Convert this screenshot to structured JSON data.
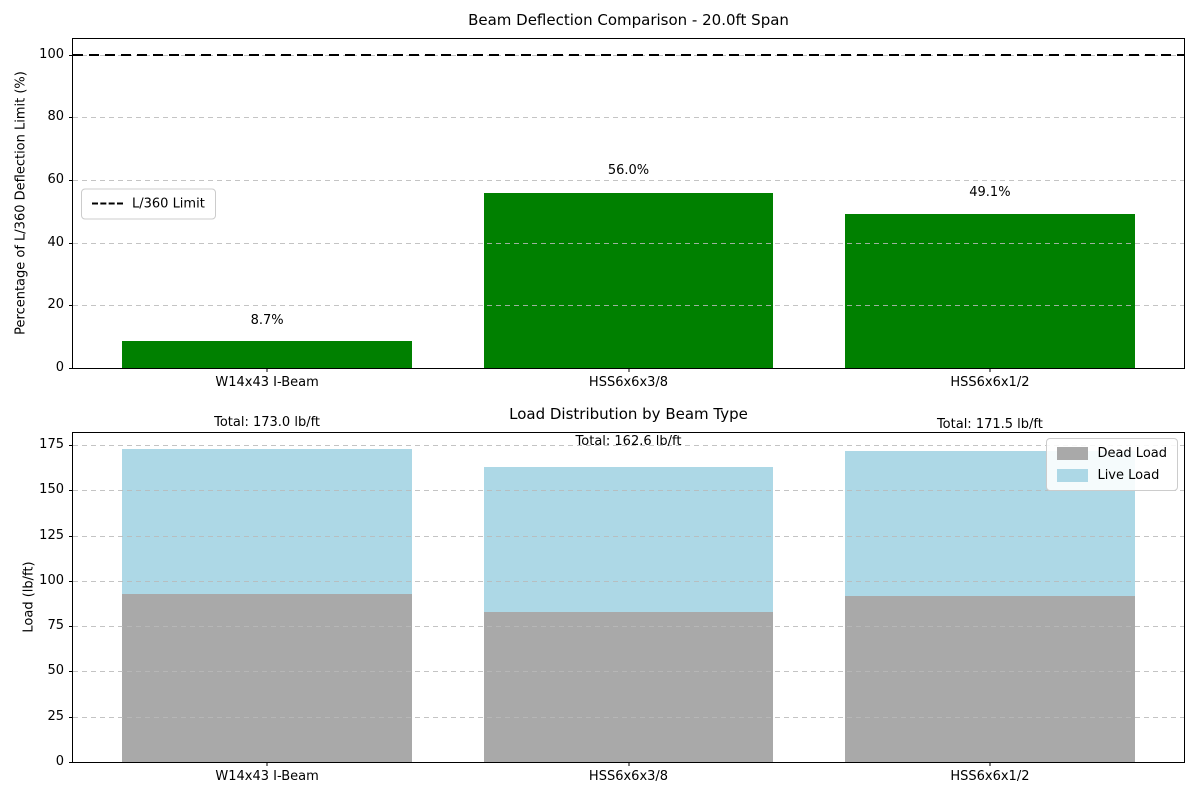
{
  "chart_data": [
    {
      "type": "bar",
      "title": "Beam Deflection Comparison - 20.0ft Span",
      "ylabel": "Percentage of L/360 Deflection Limit (%)",
      "xlabel": "",
      "categories": [
        "W14x43 I-Beam",
        "HSS6x6x3/8",
        "HSS6x6x1/2"
      ],
      "values": [
        8.7,
        56.0,
        49.1
      ],
      "value_labels": [
        "8.7%",
        "56.0%",
        "49.1%"
      ],
      "bar_color": "#008000",
      "ylim": [
        0,
        105
      ],
      "yticks": [
        0,
        20,
        40,
        60,
        80,
        100
      ],
      "grid": "y-dashed",
      "reference_line": {
        "value": 100,
        "color": "#000000",
        "linestyle": "dashed"
      },
      "legend": {
        "position": "center-left",
        "entries": [
          {
            "label": "L/360 Limit",
            "swatch_type": "dashed-line",
            "color": "#000000"
          }
        ]
      }
    },
    {
      "type": "bar",
      "stacked": true,
      "title": "Load Distribution by Beam Type",
      "ylabel": "Load (lb/ft)",
      "xlabel": "",
      "categories": [
        "W14x43 I-Beam",
        "HSS6x6x3/8",
        "HSS6x6x1/2"
      ],
      "series": [
        {
          "name": "Dead Load",
          "color": "#a9a9a9",
          "values": [
            93.0,
            82.6,
            91.5
          ]
        },
        {
          "name": "Live Load",
          "color": "#add8e6",
          "values": [
            80.0,
            80.0,
            80.0
          ]
        }
      ],
      "totals": [
        173.0,
        162.6,
        171.5
      ],
      "total_labels": [
        "Total: 173.0 lb/ft",
        "Total: 162.6 lb/ft",
        "Total: 171.5 lb/ft"
      ],
      "ylim": [
        0,
        181.6
      ],
      "yticks": [
        0,
        25,
        50,
        75,
        100,
        125,
        150,
        175
      ],
      "grid": "y-dashed",
      "legend": {
        "position": "top-right",
        "entries": [
          {
            "label": "Dead Load",
            "swatch_type": "box",
            "color": "#a9a9a9"
          },
          {
            "label": "Live Load",
            "swatch_type": "box",
            "color": "#add8e6"
          }
        ]
      }
    }
  ]
}
